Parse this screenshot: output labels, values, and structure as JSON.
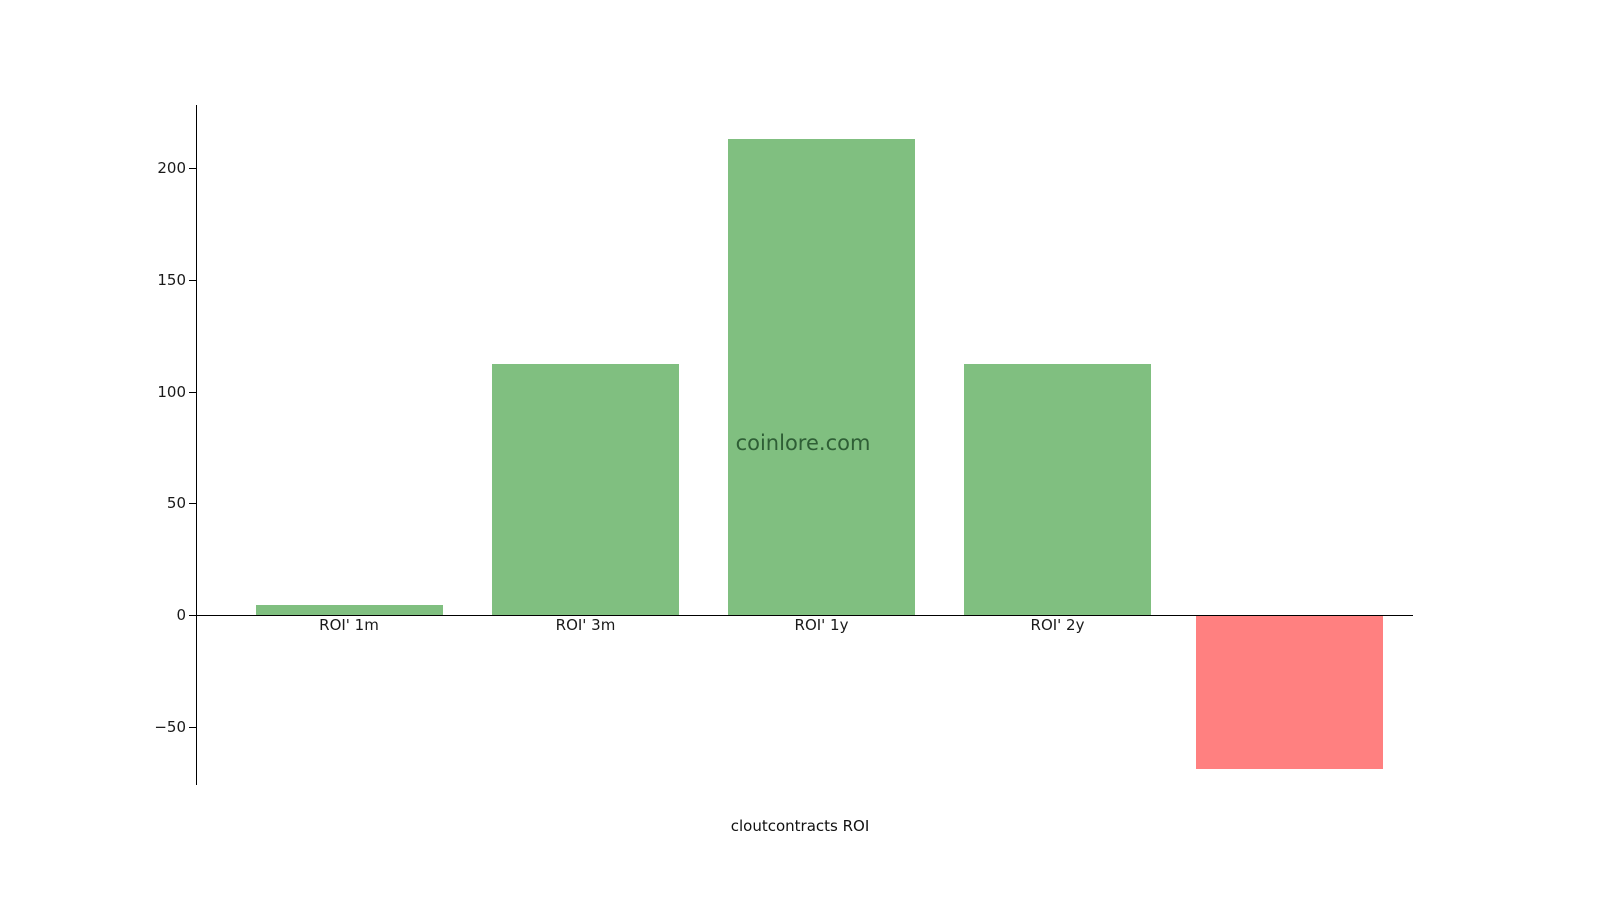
{
  "chart_data": {
    "type": "bar",
    "categories": [
      "ROI' 1m",
      "ROI' 3m",
      "ROI' 1y",
      "ROI' 2y",
      ""
    ],
    "values": [
      4.5,
      112.5,
      213,
      112.5,
      -68.5
    ],
    "title": "",
    "xlabel": "cloutcontracts ROI",
    "ylabel": "",
    "ylim": [
      -76,
      228
    ],
    "yticks": [
      200,
      150,
      100,
      50,
      0,
      -50
    ],
    "ytick_labels": [
      "200",
      "150",
      "100",
      "50",
      "0",
      "−50"
    ],
    "grid": false,
    "legend": false,
    "positive_color": "#80bf80",
    "negative_color": "#ff8080",
    "watermark": "coinlore.com"
  },
  "colors": {
    "positive": "#80bf80",
    "negative": "#ff8080",
    "watermark_text": "#2e5e35",
    "axis": "#000000",
    "text": "#1a1a1a",
    "background": "#ffffff"
  }
}
